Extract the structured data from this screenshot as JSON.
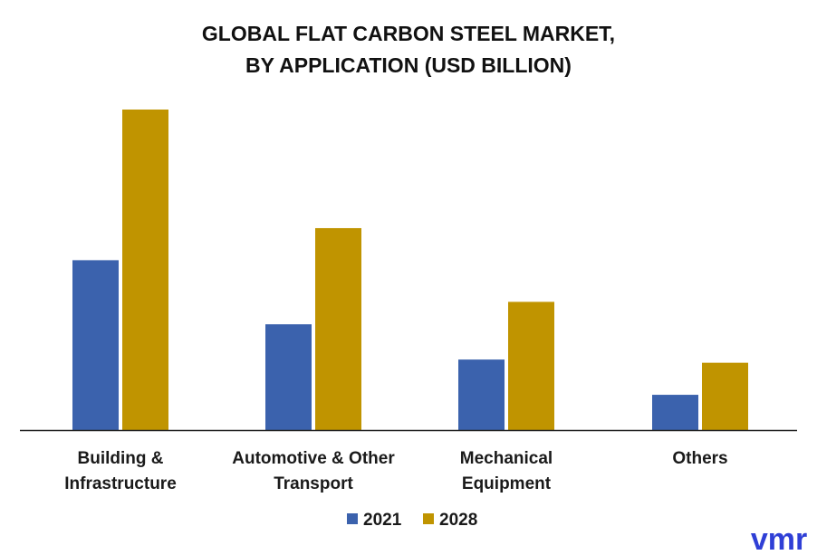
{
  "chart_data": {
    "type": "bar",
    "title_lines": [
      "GLOBAL FLAT CARBON STEEL MARKET,",
      "BY APPLICATION (USD BILLION)"
    ],
    "xlabel": "",
    "ylabel": "",
    "ylim": [
      0,
      100
    ],
    "grid": false,
    "legend_placement": "bottom-center",
    "categories": [
      [
        "Building &",
        "Infrastructure"
      ],
      [
        "Automotive & Other",
        "Transport"
      ],
      [
        "Mechanical",
        "Equipment"
      ],
      [
        "Others"
      ]
    ],
    "series": [
      {
        "name": "2021",
        "color": "#3b62ad",
        "values": [
          53,
          33,
          22,
          11
        ]
      },
      {
        "name": "2028",
        "color": "#c09400",
        "values": [
          100,
          63,
          40,
          21
        ]
      }
    ]
  },
  "branding": {
    "logo": "vmr",
    "logo_color": "#2f3fd6"
  }
}
